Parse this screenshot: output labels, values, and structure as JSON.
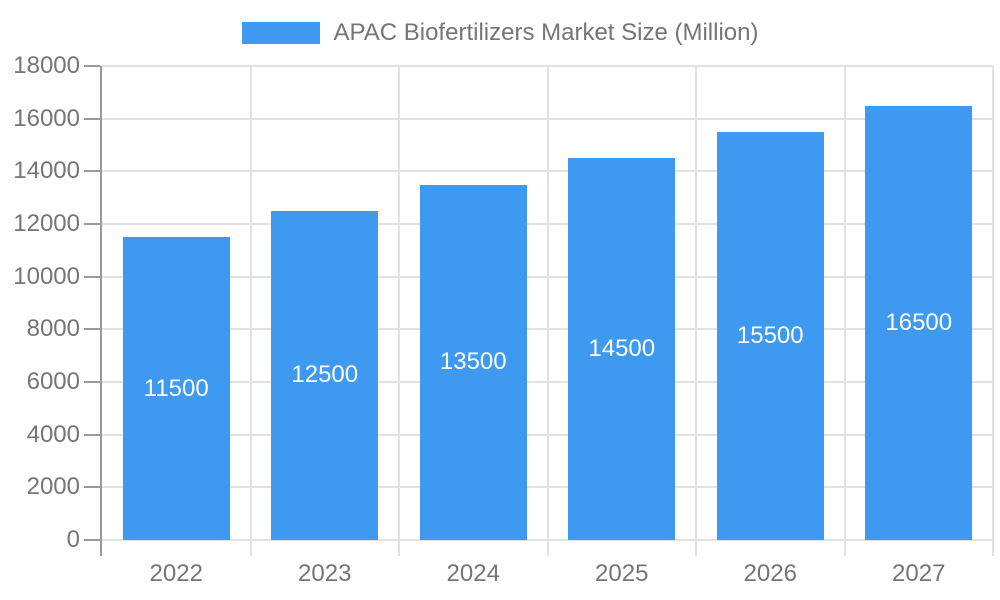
{
  "chart_data": {
    "type": "bar",
    "title": "APAC Biofertilizers Market Size (Million)",
    "categories": [
      "2022",
      "2023",
      "2024",
      "2025",
      "2026",
      "2027"
    ],
    "series": [
      {
        "name": "APAC Biofertilizers Market Size (Million)",
        "values": [
          11500,
          12500,
          13500,
          14500,
          15500,
          16500
        ]
      }
    ],
    "value_labels": [
      "11500",
      "12500",
      "13500",
      "14500",
      "15500",
      "16500"
    ],
    "xlabel": "",
    "ylabel": "",
    "ylim": [
      0,
      18000
    ],
    "y_tick_step": 2000,
    "y_tick_labels": [
      "0",
      "2000",
      "4000",
      "6000",
      "8000",
      "10000",
      "12000",
      "14000",
      "16000",
      "18000"
    ],
    "grid": true,
    "legend_position": "top-center"
  },
  "legend": {
    "label": "APAC Biofertilizers Market Size (Million)"
  },
  "colors": {
    "bar": "#3d9af0",
    "grid": "#e2e2e2",
    "axis": "#9a9a9a",
    "text": "#757575",
    "value_label": "#ffffff",
    "background": "#ffffff"
  }
}
